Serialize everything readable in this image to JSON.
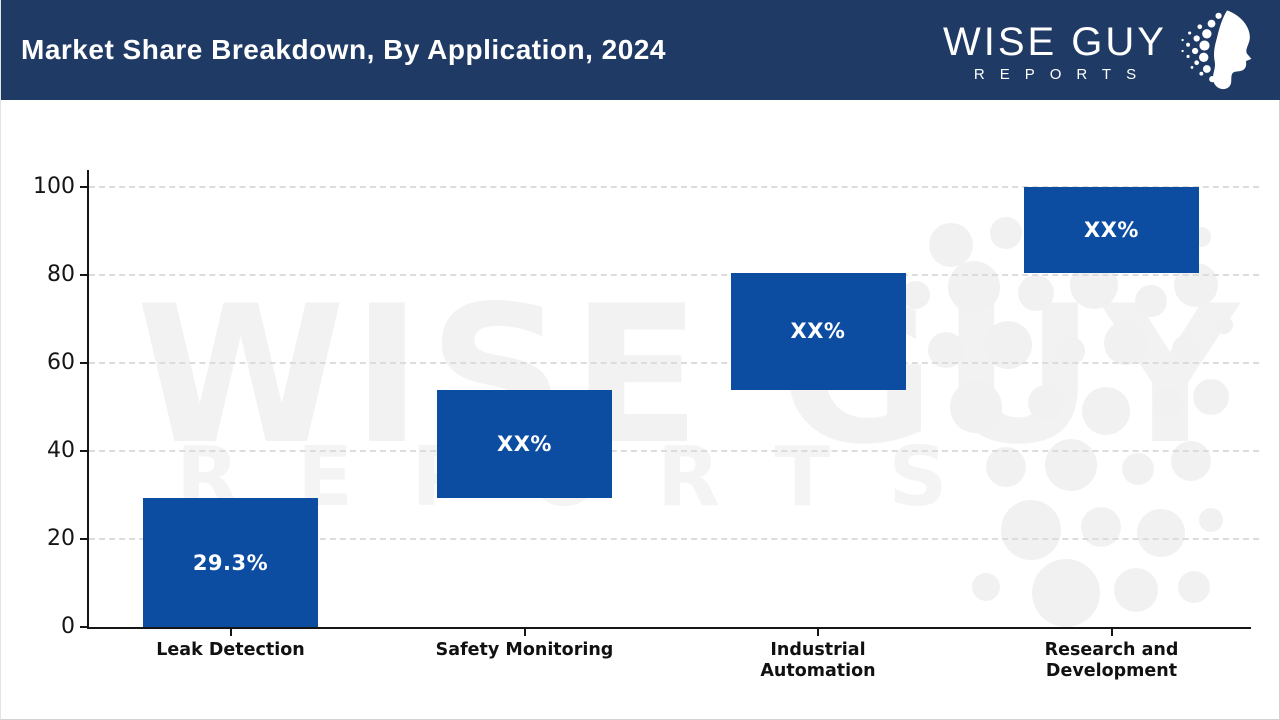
{
  "header": {
    "title": "Market Share Breakdown, By Application, 2024",
    "logo": {
      "line1": "WISE GUY",
      "line2": "REPORTS"
    }
  },
  "watermark": {
    "line1": "WISE GUY",
    "line2": "REPORTS"
  },
  "chart_data": {
    "type": "bar",
    "subtype": "waterfall",
    "title": "Market Share Breakdown, By Application, 2024",
    "xlabel": "",
    "ylabel": "",
    "ylim": [
      0,
      100
    ],
    "yticks": [
      0,
      20,
      40,
      60,
      80,
      100
    ],
    "grid": "horizontal-dashed",
    "legend": "none",
    "categories": [
      "Leak Detection",
      "Safety Monitoring",
      "Industrial Automation",
      "Research and Development"
    ],
    "category_lines": [
      [
        "Leak Detection"
      ],
      [
        "Safety Monitoring"
      ],
      [
        "Industrial",
        "Automation"
      ],
      [
        "Research and",
        "Development"
      ]
    ],
    "segments": [
      {
        "category": "Leak Detection",
        "start": 0,
        "end": 29.3,
        "label": "29.3%"
      },
      {
        "category": "Safety Monitoring",
        "start": 29.3,
        "end": 53.9,
        "label": "XX%"
      },
      {
        "category": "Industrial Automation",
        "start": 53.9,
        "end": 80.5,
        "label": "XX%"
      },
      {
        "category": "Research and Development",
        "start": 80.5,
        "end": 100,
        "label": "XX%"
      }
    ]
  },
  "colors": {
    "header_bg": "#1f3a64",
    "bar": "#0c4da2",
    "bar_label": "#ffffff",
    "grid": "#dcdcdc",
    "axis": "#161616",
    "watermark": "#f2f2f3",
    "page_bg": "#ffffff"
  }
}
